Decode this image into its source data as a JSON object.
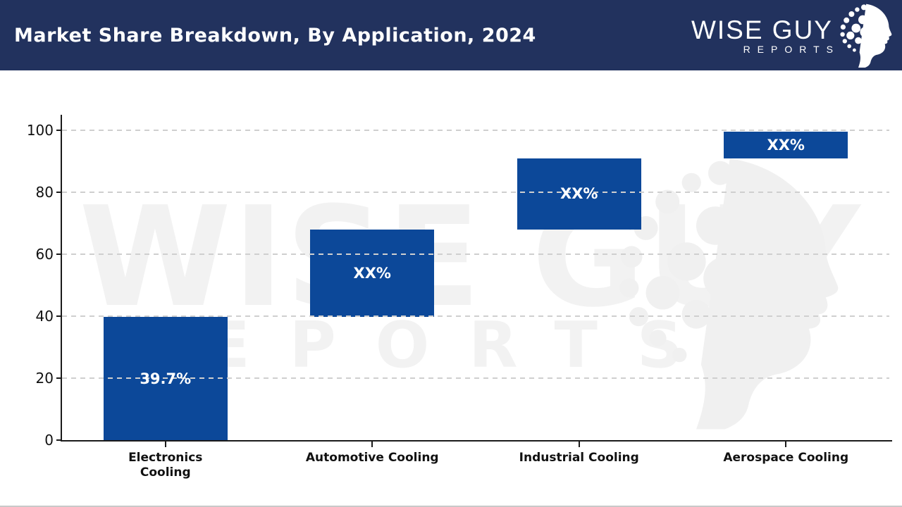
{
  "header": {
    "title": "Market Share Breakdown, By Application, 2024",
    "logo": {
      "line1": "WISE GUY",
      "line2": "REPORTS"
    }
  },
  "watermark": {
    "line1": "WISE GUY",
    "line2": "REPORTS"
  },
  "colors": {
    "header_bg": "#22325e",
    "bar": "#0c4899",
    "bar_label": "#ffffff",
    "grid": "#cfcfcf",
    "axis": "#1a1a1a",
    "watermark": "#f2f2f2"
  },
  "chart_data": {
    "type": "bar",
    "variant": "floating-waterfall-segments",
    "title": "Market Share Breakdown, By Application, 2024",
    "categories": [
      "Electronics Cooling",
      "Automotive Cooling",
      "Industrial Cooling",
      "Aerospace Cooling"
    ],
    "category_labels": [
      "Electronics\nCooling",
      "Automotive Cooling",
      "Industrial Cooling",
      "Aerospace Cooling"
    ],
    "series": [
      {
        "name": "Market Share (%)",
        "segments": [
          {
            "category": "Electronics Cooling",
            "start": 0,
            "end": 39.7,
            "label": "39.7%"
          },
          {
            "category": "Automotive Cooling",
            "start": 39.7,
            "end": 68,
            "label": "XX%"
          },
          {
            "category": "Industrial Cooling",
            "start": 68,
            "end": 91,
            "label": "XX%"
          },
          {
            "category": "Aerospace Cooling",
            "start": 91,
            "end": 99.5,
            "label": "XX%"
          }
        ]
      }
    ],
    "yticks": [
      0,
      20,
      40,
      60,
      80,
      100
    ],
    "ylim": [
      0,
      105
    ],
    "xlabel": "",
    "ylabel": "",
    "grid": "horizontal-dashed",
    "legend": "none",
    "bar_color": "#0c4899",
    "bar_label_color": "#ffffff"
  }
}
